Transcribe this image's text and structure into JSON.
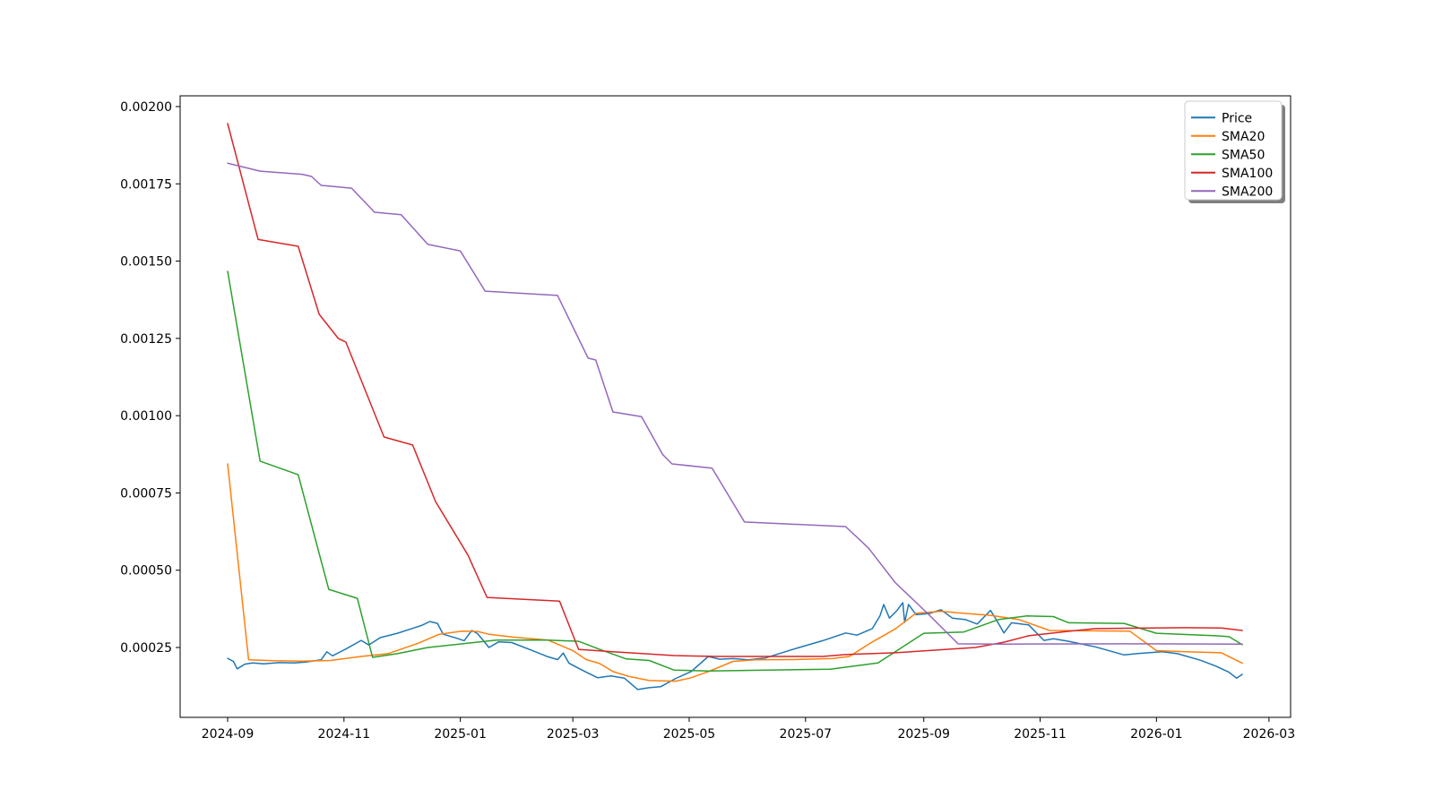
{
  "chart_data": {
    "type": "line",
    "title": "",
    "xlabel": "",
    "ylabel": "",
    "grid": false,
    "x_axis": {
      "type": "date",
      "tick_dates": [
        "2024-09-01",
        "2024-11-01",
        "2025-01-01",
        "2025-03-01",
        "2025-05-01",
        "2025-07-01",
        "2025-09-01",
        "2025-11-01",
        "2026-01-01",
        "2026-03-01"
      ],
      "tick_labels": [
        "2024-09",
        "2024-11",
        "2025-01",
        "2025-03",
        "2025-05",
        "2025-07",
        "2025-09",
        "2025-11",
        "2026-01",
        "2026-03"
      ],
      "range": [
        "2024-08-06",
        "2026-03-14"
      ]
    },
    "y_axis": {
      "tick_values": [
        0.00025,
        0.0005,
        0.00075,
        0.001,
        0.00125,
        0.0015,
        0.00175,
        0.002
      ],
      "tick_labels": [
        "0.00025",
        "0.00050",
        "0.00075",
        "0.00100",
        "0.00125",
        "0.00150",
        "0.00175",
        "0.00200"
      ],
      "range": [
        2.24e-05,
        0.002037
      ]
    },
    "legend": {
      "position": "upper right",
      "entries": [
        "Price",
        "SMA20",
        "SMA50",
        "SMA100",
        "SMA200"
      ]
    },
    "series": [
      {
        "name": "Price",
        "color": "#1f77b4",
        "points": [
          [
            "2024-09-01",
            0.000215
          ],
          [
            "2024-09-04",
            0.000205
          ],
          [
            "2024-09-06",
            0.000181
          ],
          [
            "2024-09-10",
            0.000196
          ],
          [
            "2024-09-14",
            0.0002
          ],
          [
            "2024-09-20",
            0.000197
          ],
          [
            "2024-09-28",
            0.000201
          ],
          [
            "2024-10-06",
            0.0002
          ],
          [
            "2024-10-12",
            0.000203
          ],
          [
            "2024-10-20",
            0.00021
          ],
          [
            "2024-10-23",
            0.000236
          ],
          [
            "2024-10-26",
            0.000223
          ],
          [
            "2024-11-02",
            0.000245
          ],
          [
            "2024-11-10",
            0.000273
          ],
          [
            "2024-11-14",
            0.000258
          ],
          [
            "2024-11-20",
            0.000282
          ],
          [
            "2024-11-29",
            0.000296
          ],
          [
            "2024-12-06",
            0.00031
          ],
          [
            "2024-12-12",
            0.000322
          ],
          [
            "2024-12-16",
            0.000334
          ],
          [
            "2024-12-20",
            0.000328
          ],
          [
            "2024-12-23",
            0.000293
          ],
          [
            "2024-12-30",
            0.00028
          ],
          [
            "2025-01-03",
            0.000272
          ],
          [
            "2025-01-07",
            0.000305
          ],
          [
            "2025-01-10",
            0.000295
          ],
          [
            "2025-01-13",
            0.000273
          ],
          [
            "2025-01-16",
            0.00025
          ],
          [
            "2025-01-21",
            0.000268
          ],
          [
            "2025-01-28",
            0.000266
          ],
          [
            "2025-02-07",
            0.000242
          ],
          [
            "2025-02-16",
            0.00022
          ],
          [
            "2025-02-21",
            0.000211
          ],
          [
            "2025-02-24",
            0.000232
          ],
          [
            "2025-02-27",
            0.000199
          ],
          [
            "2025-03-03",
            0.000186
          ],
          [
            "2025-03-08",
            0.00017
          ],
          [
            "2025-03-14",
            0.000152
          ],
          [
            "2025-03-21",
            0.000158
          ],
          [
            "2025-03-28",
            0.000151
          ],
          [
            "2025-04-04",
            0.000114
          ],
          [
            "2025-04-10",
            0.00012
          ],
          [
            "2025-04-16",
            0.000123
          ],
          [
            "2025-04-24",
            0.00015
          ],
          [
            "2025-05-02",
            0.000172
          ],
          [
            "2025-05-11",
            0.000221
          ],
          [
            "2025-05-17",
            0.000212
          ],
          [
            "2025-05-24",
            0.000214
          ],
          [
            "2025-06-01",
            0.00021
          ],
          [
            "2025-06-10",
            0.000216
          ],
          [
            "2025-06-25",
            0.000245
          ],
          [
            "2025-07-10",
            0.000272
          ],
          [
            "2025-07-22",
            0.000297
          ],
          [
            "2025-07-28",
            0.00029
          ],
          [
            "2025-08-05",
            0.000311
          ],
          [
            "2025-08-09",
            0.000352
          ],
          [
            "2025-08-11",
            0.000389
          ],
          [
            "2025-08-14",
            0.000345
          ],
          [
            "2025-08-18",
            0.00037
          ],
          [
            "2025-08-21",
            0.000395
          ],
          [
            "2025-08-22",
            0.000331
          ],
          [
            "2025-08-24",
            0.000389
          ],
          [
            "2025-08-28",
            0.000356
          ],
          [
            "2025-09-04",
            0.00036
          ],
          [
            "2025-09-10",
            0.000372
          ],
          [
            "2025-09-16",
            0.000345
          ],
          [
            "2025-09-23",
            0.00034
          ],
          [
            "2025-09-29",
            0.000326
          ],
          [
            "2025-10-06",
            0.00037
          ],
          [
            "2025-10-09",
            0.00034
          ],
          [
            "2025-10-13",
            0.000297
          ],
          [
            "2025-10-17",
            0.00033
          ],
          [
            "2025-10-26",
            0.000323
          ],
          [
            "2025-11-03",
            0.000273
          ],
          [
            "2025-11-08",
            0.000278
          ],
          [
            "2025-11-16",
            0.00027
          ],
          [
            "2025-11-30",
            0.000252
          ],
          [
            "2025-12-15",
            0.000226
          ],
          [
            "2025-12-23",
            0.000231
          ],
          [
            "2026-01-04",
            0.000236
          ],
          [
            "2026-01-12",
            0.00023
          ],
          [
            "2026-01-24",
            0.000209
          ],
          [
            "2026-02-01",
            0.00019
          ],
          [
            "2026-02-08",
            0.00017
          ],
          [
            "2026-02-12",
            0.000151
          ],
          [
            "2026-02-15",
            0.000163
          ]
        ]
      },
      {
        "name": "SMA20",
        "color": "#ff7f0e",
        "points": [
          [
            "2024-09-01",
            0.000844
          ],
          [
            "2024-09-12",
            0.00021
          ],
          [
            "2024-09-25",
            0.000207
          ],
          [
            "2024-10-10",
            0.000206
          ],
          [
            "2024-10-25",
            0.000208
          ],
          [
            "2024-11-10",
            0.000221
          ],
          [
            "2024-11-24",
            0.00023
          ],
          [
            "2024-12-10",
            0.000264
          ],
          [
            "2024-12-21",
            0.000293
          ],
          [
            "2025-01-02",
            0.000303
          ],
          [
            "2025-01-10",
            0.000302
          ],
          [
            "2025-01-16",
            0.000293
          ],
          [
            "2025-01-28",
            0.000284
          ],
          [
            "2025-02-16",
            0.000274
          ],
          [
            "2025-03-01",
            0.00024
          ],
          [
            "2025-03-08",
            0.000211
          ],
          [
            "2025-03-15",
            0.000198
          ],
          [
            "2025-03-22",
            0.000172
          ],
          [
            "2025-03-30",
            0.000157
          ],
          [
            "2025-04-10",
            0.000143
          ],
          [
            "2025-04-24",
            0.000141
          ],
          [
            "2025-05-02",
            0.000152
          ],
          [
            "2025-05-11",
            0.000172
          ],
          [
            "2025-05-24",
            0.000205
          ],
          [
            "2025-06-05",
            0.00021
          ],
          [
            "2025-06-25",
            0.000211
          ],
          [
            "2025-07-15",
            0.000214
          ],
          [
            "2025-07-24",
            0.000221
          ],
          [
            "2025-08-05",
            0.000268
          ],
          [
            "2025-08-17",
            0.00031
          ],
          [
            "2025-08-28",
            0.000361
          ],
          [
            "2025-09-10",
            0.000367
          ],
          [
            "2025-09-23",
            0.00036
          ],
          [
            "2025-10-06",
            0.000354
          ],
          [
            "2025-10-21",
            0.00034
          ],
          [
            "2025-11-06",
            0.000305
          ],
          [
            "2025-12-18",
            0.000303
          ],
          [
            "2026-01-01",
            0.00024
          ],
          [
            "2026-01-16",
            0.000236
          ],
          [
            "2026-02-04",
            0.000233
          ],
          [
            "2026-02-15",
            0.000199
          ]
        ]
      },
      {
        "name": "SMA50",
        "color": "#2ca02c",
        "points": [
          [
            "2024-09-01",
            0.001467
          ],
          [
            "2024-09-18",
            0.000853
          ],
          [
            "2024-10-08",
            0.000809
          ],
          [
            "2024-10-24",
            0.000438
          ],
          [
            "2024-11-08",
            0.000409
          ],
          [
            "2024-11-16",
            0.000218
          ],
          [
            "2024-11-29",
            0.00023
          ],
          [
            "2024-12-15",
            0.00025
          ],
          [
            "2025-01-02",
            0.000262
          ],
          [
            "2025-01-20",
            0.000274
          ],
          [
            "2025-02-16",
            0.000274
          ],
          [
            "2025-03-04",
            0.00027
          ],
          [
            "2025-03-15",
            0.000244
          ],
          [
            "2025-03-29",
            0.000213
          ],
          [
            "2025-04-10",
            0.000208
          ],
          [
            "2025-04-23",
            0.000177
          ],
          [
            "2025-05-11",
            0.000174
          ],
          [
            "2025-07-14",
            0.00018
          ],
          [
            "2025-08-08",
            0.0002
          ],
          [
            "2025-09-01",
            0.000296
          ],
          [
            "2025-09-22",
            0.0003
          ],
          [
            "2025-10-10",
            0.00034
          ],
          [
            "2025-10-25",
            0.000352
          ],
          [
            "2025-11-08",
            0.00035
          ],
          [
            "2025-11-16",
            0.00033
          ],
          [
            "2025-12-15",
            0.000328
          ],
          [
            "2026-01-01",
            0.000296
          ],
          [
            "2026-02-01",
            0.000288
          ],
          [
            "2026-02-08",
            0.000285
          ],
          [
            "2026-02-15",
            0.000259
          ]
        ]
      },
      {
        "name": "SMA100",
        "color": "#d62728",
        "points": [
          [
            "2024-09-01",
            0.001945
          ],
          [
            "2024-09-17",
            0.00157
          ],
          [
            "2024-10-08",
            0.001548
          ],
          [
            "2024-10-19",
            0.001328
          ],
          [
            "2024-10-29",
            0.00125
          ],
          [
            "2024-11-02",
            0.001238
          ],
          [
            "2024-11-22",
            0.000931
          ],
          [
            "2024-12-07",
            0.000905
          ],
          [
            "2024-12-19",
            0.000722
          ],
          [
            "2025-01-05",
            0.000549
          ],
          [
            "2025-01-15",
            0.000412
          ],
          [
            "2025-02-22",
            0.0004
          ],
          [
            "2025-03-04",
            0.000244
          ],
          [
            "2025-03-15",
            0.000239
          ],
          [
            "2025-03-22",
            0.000236
          ],
          [
            "2025-04-23",
            0.000224
          ],
          [
            "2025-05-15",
            0.000221
          ],
          [
            "2025-07-10",
            0.000221
          ],
          [
            "2025-07-22",
            0.000227
          ],
          [
            "2025-08-17",
            0.000233
          ],
          [
            "2025-09-03",
            0.00024
          ],
          [
            "2025-09-28",
            0.00025
          ],
          [
            "2025-10-13",
            0.000267
          ],
          [
            "2025-10-26",
            0.000288
          ],
          [
            "2025-11-15",
            0.000302
          ],
          [
            "2025-11-30",
            0.000311
          ],
          [
            "2026-01-16",
            0.000314
          ],
          [
            "2026-02-04",
            0.000313
          ],
          [
            "2026-02-15",
            0.000305
          ]
        ]
      },
      {
        "name": "SMA200",
        "color": "#9467bd",
        "points": [
          [
            "2024-09-01",
            0.001817
          ],
          [
            "2024-09-18",
            0.001791
          ],
          [
            "2024-10-10",
            0.001781
          ],
          [
            "2024-10-15",
            0.001774
          ],
          [
            "2024-10-20",
            0.001745
          ],
          [
            "2024-11-05",
            0.001736
          ],
          [
            "2024-11-17",
            0.001658
          ],
          [
            "2024-12-01",
            0.00165
          ],
          [
            "2024-12-15",
            0.001554
          ],
          [
            "2025-01-01",
            0.001533
          ],
          [
            "2025-01-14",
            0.001403
          ],
          [
            "2025-02-21",
            0.001389
          ],
          [
            "2025-03-09",
            0.001186
          ],
          [
            "2025-03-13",
            0.00118
          ],
          [
            "2025-03-22",
            0.001012
          ],
          [
            "2025-04-06",
            0.000997
          ],
          [
            "2025-04-17",
            0.000875
          ],
          [
            "2025-04-22",
            0.000844
          ],
          [
            "2025-05-13",
            0.00083
          ],
          [
            "2025-05-30",
            0.000656
          ],
          [
            "2025-07-22",
            0.000641
          ],
          [
            "2025-08-03",
            0.000572
          ],
          [
            "2025-08-17",
            0.00046
          ],
          [
            "2025-09-03",
            0.00036
          ],
          [
            "2025-09-19",
            0.000262
          ],
          [
            "2025-10-13",
            0.000261
          ],
          [
            "2025-12-15",
            0.000262
          ],
          [
            "2026-02-15",
            0.000261
          ]
        ]
      }
    ]
  }
}
